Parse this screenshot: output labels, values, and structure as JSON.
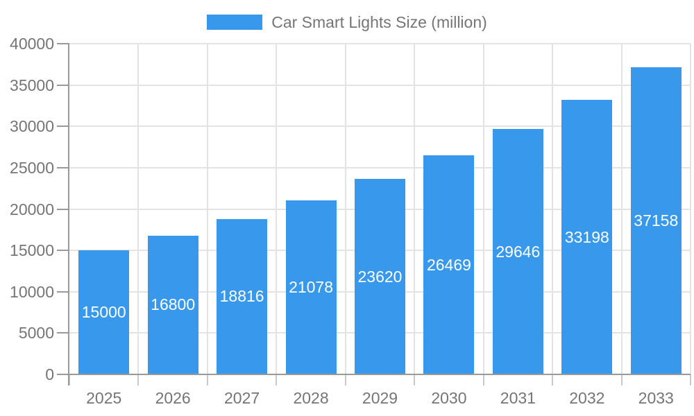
{
  "chart_data": {
    "type": "bar",
    "title": "Car Smart Lights Size (million)",
    "legend": [
      "Car Smart Lights Size (million)"
    ],
    "legend_position": "top-center",
    "categories": [
      "2025",
      "2026",
      "2027",
      "2028",
      "2029",
      "2030",
      "2031",
      "2032",
      "2033"
    ],
    "series": [
      {
        "name": "Car Smart Lights Size (million)",
        "values": [
          15000,
          16800,
          18816,
          21078,
          23620,
          26469,
          29646,
          33198,
          37158
        ]
      }
    ],
    "bar_labels": [
      15000,
      16800,
      18816,
      21078,
      23620,
      26469,
      29646,
      33198,
      37158
    ],
    "bar_label_position": "inside-center",
    "xlabel": "",
    "ylabel": "",
    "ylim": [
      0,
      40000
    ],
    "ytick_step": 5000,
    "ytick_labels": [
      "0",
      "5000",
      "10000",
      "15000",
      "20000",
      "25000",
      "30000",
      "35000",
      "40000"
    ],
    "grid": true
  },
  "colors": {
    "bar": "#3899EC",
    "bar_label": "#FFFFFF",
    "axis_line": "#999999",
    "grid_line": "#E3E3E3",
    "tick_line": "#C9C9C9",
    "text": "#757575",
    "background": "#FFFFFF"
  }
}
